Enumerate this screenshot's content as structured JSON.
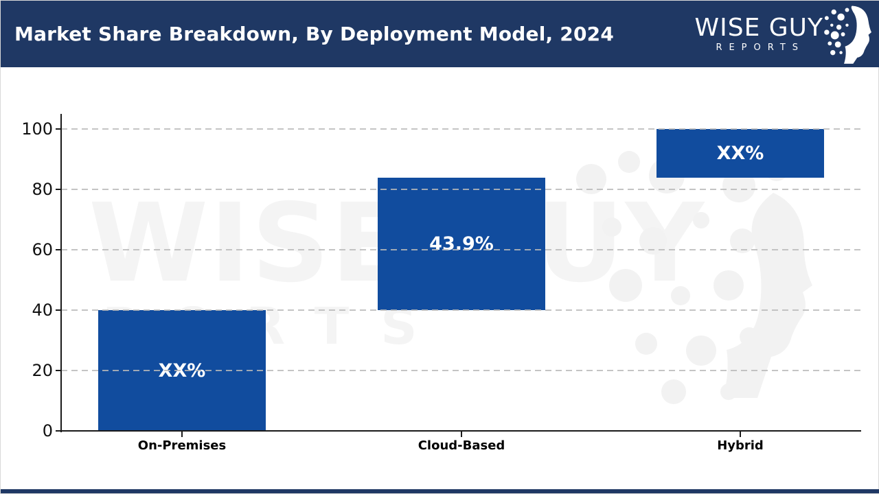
{
  "header": {
    "title": "Market Share Breakdown, By Deployment Model, 2024",
    "logo": {
      "line1": "WISE GUY",
      "line2": "REPORTS"
    }
  },
  "watermark": {
    "line1": "WISE GUY",
    "line2": "PORTS"
  },
  "colors": {
    "header_bg": "#1F3864",
    "bar": "#114C9E",
    "grid": "#C9C9C9",
    "axis": "#1a1a1a",
    "watermark": "#F4F4F4"
  },
  "chart_data": {
    "type": "bar",
    "subtype": "waterfall",
    "title": "Market Share Breakdown, By Deployment Model, 2024",
    "categories": [
      "On-Premises",
      "Cloud-Based",
      "Hybrid"
    ],
    "segments": [
      {
        "category": "On-Premises",
        "start": 0,
        "end": 40,
        "label": "XX%"
      },
      {
        "category": "Cloud-Based",
        "start": 40,
        "end": 83.9,
        "label": "43.9%"
      },
      {
        "category": "Hybrid",
        "start": 83.9,
        "end": 100,
        "label": "XX%"
      }
    ],
    "bar_labels": [
      "XX%",
      "43.9%",
      "XX%"
    ],
    "y_ticks": [
      0,
      20,
      40,
      60,
      80,
      100
    ],
    "ylim": [
      0,
      105
    ],
    "xlabel": "",
    "ylabel": "",
    "grid": "horizontal-dashed",
    "legend": "none",
    "bar_color": "#114C9E"
  }
}
